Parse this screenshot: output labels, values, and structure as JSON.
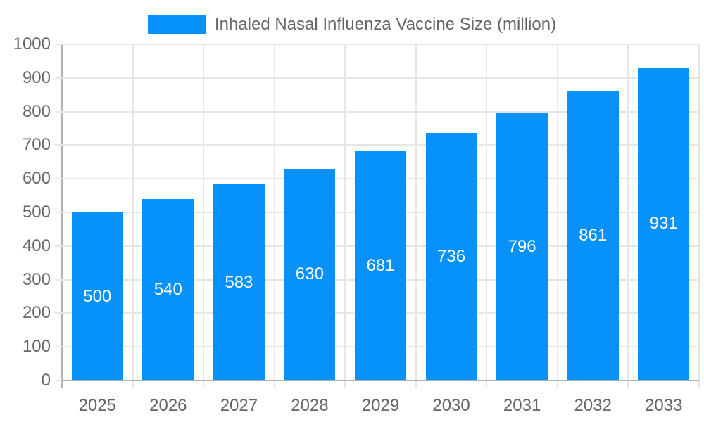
{
  "legend": {
    "label": "Inhaled Nasal Influenza Vaccine Size (million)"
  },
  "chart_data": {
    "type": "bar",
    "title": "",
    "series_name": "Inhaled Nasal Influenza Vaccine Size (million)",
    "categories": [
      "2025",
      "2026",
      "2027",
      "2028",
      "2029",
      "2030",
      "2031",
      "2032",
      "2033"
    ],
    "values": [
      500,
      540,
      583,
      630,
      681,
      736,
      796,
      861,
      931
    ],
    "bar_labels": [
      "500",
      "540",
      "583",
      "630",
      "681",
      "736",
      "796",
      "861",
      "931"
    ],
    "xlabel": "",
    "ylabel": "",
    "ylim": [
      0,
      1000
    ],
    "y_tick_step": 100,
    "y_tick_labels": [
      "0",
      "100",
      "200",
      "300",
      "400",
      "500",
      "600",
      "700",
      "800",
      "900",
      "1000"
    ],
    "grid": true,
    "legend_position": "top"
  },
  "colors": {
    "bar": "#0692fa",
    "bar_label_text": "#ffffff",
    "gridline": "#e6e6e6",
    "axis_line": "#b1b1b1",
    "tick_label": "#666666",
    "legend_text": "#666666",
    "background": "#ffffff"
  }
}
